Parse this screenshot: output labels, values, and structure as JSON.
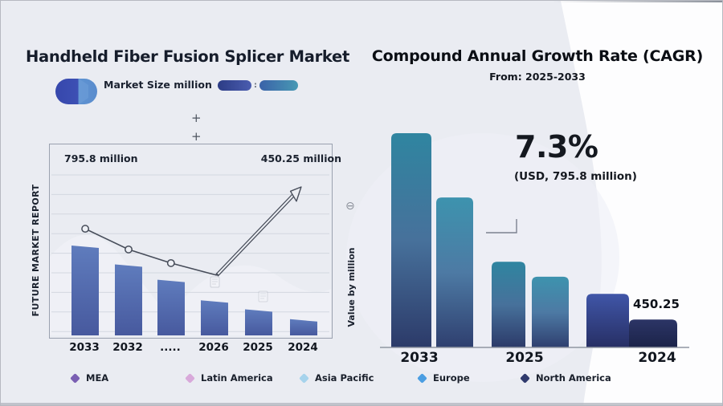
{
  "titles": {
    "left": "Handheld Fiber Fusion Splicer Market",
    "right": "Compound Annual Growth Rate (CAGR)",
    "right_sub": "From: 2025-2033"
  },
  "market_legend": {
    "label": "Market Size million"
  },
  "decorations": {
    "plus": "+",
    "minus_circle": "⊖"
  },
  "left_chart": {
    "side_label": "FUTURE MARKET REPORT",
    "axis_label": "Value by million"
  },
  "chart_data": [
    {
      "type": "bar",
      "title": "Handheld Fiber Fusion Splicer Market — Market Size million",
      "categories": [
        "2033",
        "2032",
        ".....",
        "2026",
        "2025",
        "2024"
      ],
      "values_rel": [
        1.0,
        0.79,
        0.62,
        0.39,
        0.29,
        0.18
      ],
      "annotations": [
        "795.8 million",
        "450.25 million"
      ],
      "line_overlay_rel": [
        [
          0.126,
          0.633
        ],
        [
          0.28,
          0.51
        ],
        [
          0.431,
          0.429
        ],
        [
          0.594,
          0.357
        ]
      ],
      "arrow_tip_rel": [
        0.894,
        0.881
      ],
      "ylabel_left": "FUTURE MARKET REPORT",
      "ylabel_right": "Value by million",
      "grid": true,
      "bar_color": "#5471b5"
    },
    {
      "type": "bar",
      "title": "Compound Annual Growth Rate (CAGR) From: 2025-2033",
      "categories": [
        "2033",
        "2025",
        "2024"
      ],
      "series": [
        {
          "name": "primary",
          "values_rel": [
            1.0,
            0.4,
            0.25
          ]
        },
        {
          "name": "secondary",
          "values_rel": [
            0.7,
            0.33,
            0.13
          ]
        }
      ],
      "cagr": "7.3%",
      "cagr_detail": "(USD, 795.8 million)",
      "value_label": {
        "category": "2024",
        "text": "450.25"
      },
      "grid": false
    }
  ],
  "legend": {
    "items": [
      {
        "label": "MEA",
        "color": "#7a5fb3"
      },
      {
        "label": "Latin America",
        "color": "#d8a9da"
      },
      {
        "label": "Asia Pacific",
        "color": "#a6d3ec"
      },
      {
        "label": "Europe",
        "color": "#4b9ee2"
      },
      {
        "label": "North America",
        "color": "#2f3a6d"
      }
    ]
  }
}
